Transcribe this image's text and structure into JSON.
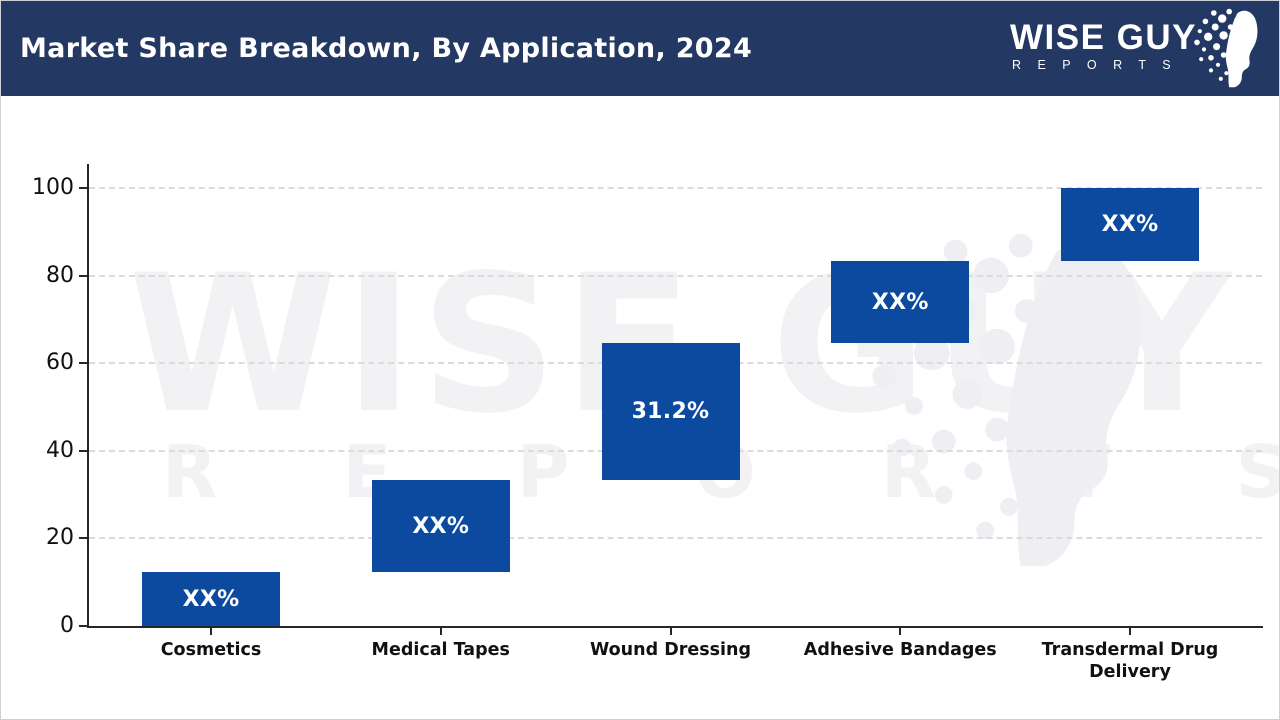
{
  "header": {
    "title": "Market Share Breakdown, By Application, 2024",
    "bg_color": "#233863",
    "logo": {
      "line1": "WISE GUY",
      "line2": "R E P O R T S"
    }
  },
  "watermark": {
    "line1": "WISE GUY",
    "line2": "R E P O R T S"
  },
  "chart_data": {
    "type": "bar",
    "subtype": "floating-segment-waterfall",
    "title": "Market Share Breakdown, By Application, 2024",
    "categories": [
      "Cosmetics",
      "Medical Tapes",
      "Wound Dressing",
      "Adhesive Bandages",
      "Transdermal Drug Delivery"
    ],
    "segments": [
      {
        "category": "Cosmetics",
        "label": "XX%",
        "start": 0,
        "end": 12.3,
        "share_pct_est": 12.3
      },
      {
        "category": "Medical Tapes",
        "label": "XX%",
        "start": 12.3,
        "end": 33.3,
        "share_pct_est": 21.0
      },
      {
        "category": "Wound Dressing",
        "label": "31.2%",
        "start": 33.3,
        "end": 64.5,
        "share_pct_est": 31.2
      },
      {
        "category": "Adhesive Bandages",
        "label": "XX%",
        "start": 64.5,
        "end": 83.3,
        "share_pct_est": 18.8
      },
      {
        "category": "Transdermal Drug Delivery",
        "label": "XX%",
        "start": 83.3,
        "end": 100,
        "share_pct_est": 16.7
      }
    ],
    "ylim": [
      0,
      100
    ],
    "yticks": [
      0,
      20,
      40,
      60,
      80,
      100
    ],
    "xlabel": "",
    "ylabel": "",
    "grid": "horizontal dashed",
    "legend": "none",
    "bar_color": "#0b4a9e",
    "bar_label_color": "#ffffff"
  }
}
